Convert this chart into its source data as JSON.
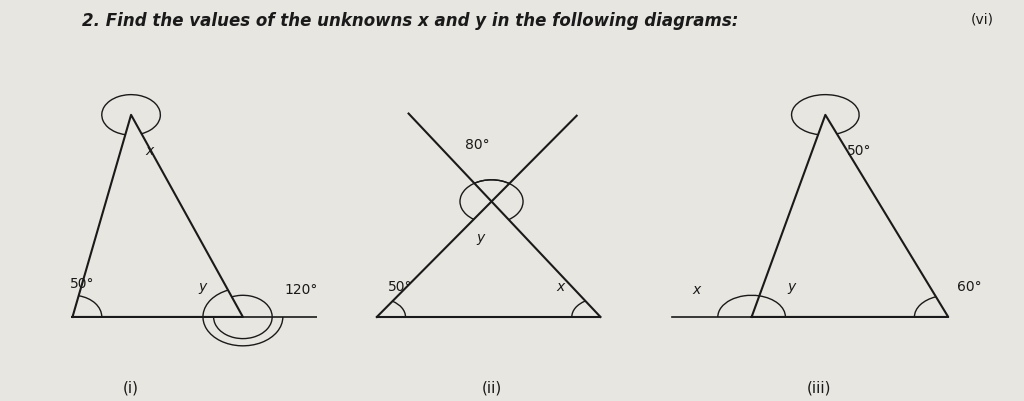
{
  "title": "2. Find the values of the unknowns x and y in the following diagrams:",
  "vi_label": "(vi)",
  "bg_color": "#e8e6e0",
  "line_color": "#1a1a1a",
  "text_color": "#1a1a1a",
  "font_size_title": 12,
  "font_size_angles": 10,
  "font_size_labels": 11,
  "diagram_labels": [
    "(i)",
    "(ii)",
    "(iii)"
  ]
}
